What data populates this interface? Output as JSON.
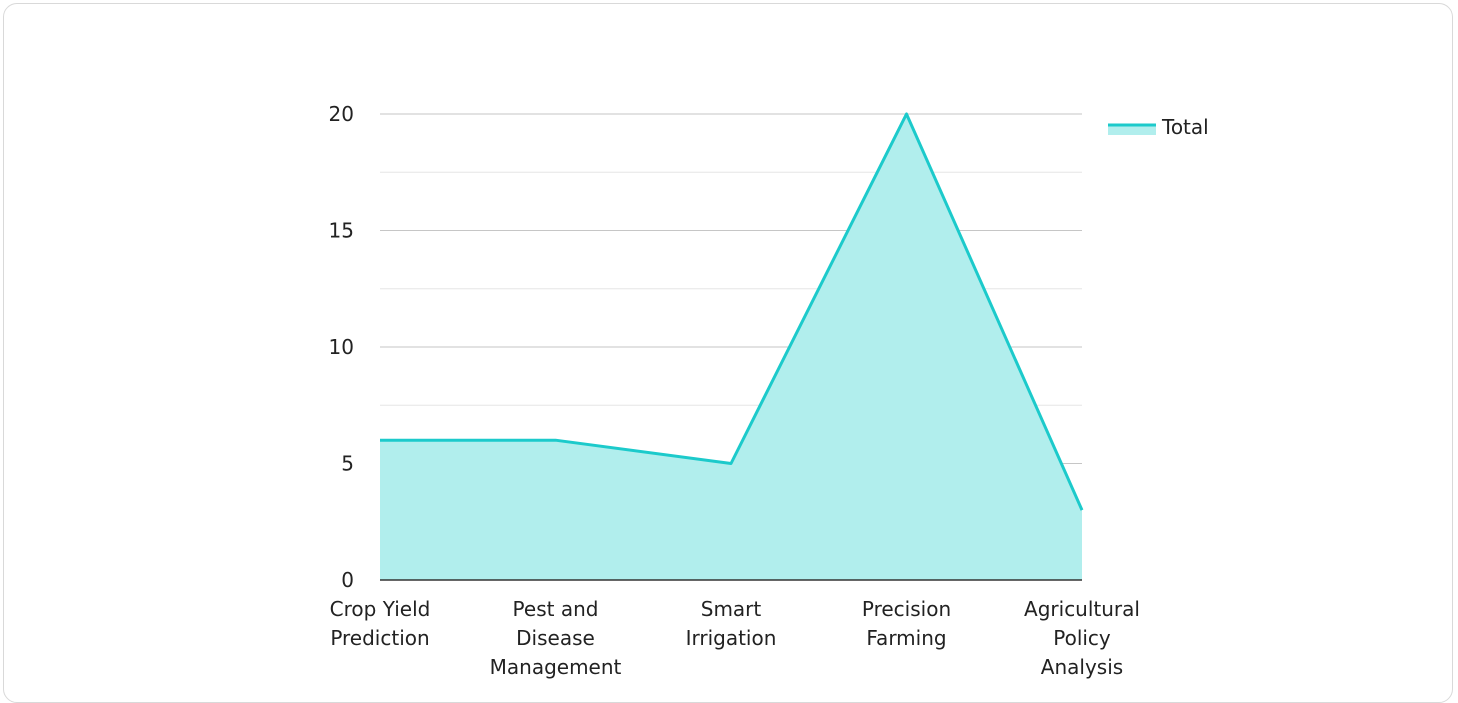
{
  "chart_data": {
    "type": "area",
    "categories": [
      "Crop Yield Prediction",
      "Pest and Disease Management",
      "Smart Irrigation",
      "Precision Farming",
      "Agricultural Policy Analysis"
    ],
    "category_label_lines": [
      [
        "Crop Yield",
        "Prediction"
      ],
      [
        "Pest and",
        "Disease",
        "Management"
      ],
      [
        "Smart",
        "Irrigation"
      ],
      [
        "Precision",
        "Farming"
      ],
      [
        "Agricultural",
        "Policy",
        "Analysis"
      ]
    ],
    "series": [
      {
        "name": "Total",
        "values": [
          6,
          6,
          5,
          20,
          3
        ],
        "line_color": "#1ccacb",
        "fill_color": "#b1eeed"
      }
    ],
    "y_ticks": [
      0,
      5,
      10,
      15,
      20
    ],
    "ylim": [
      0,
      20
    ],
    "grid": true,
    "legend": "top-right",
    "title": "",
    "xlabel": "",
    "ylabel": ""
  }
}
